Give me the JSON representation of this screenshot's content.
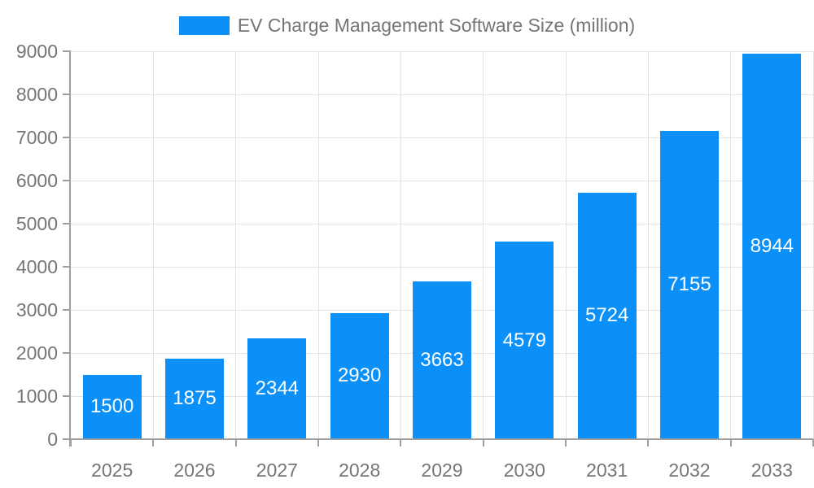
{
  "chart_data": {
    "type": "bar",
    "title": "EV Charge Management Software Size (million)",
    "legend_entries": [
      "EV Charge Management Software Size (million)"
    ],
    "legend_position": "top",
    "categories": [
      "2025",
      "2026",
      "2027",
      "2028",
      "2029",
      "2030",
      "2031",
      "2032",
      "2033"
    ],
    "values": [
      1500,
      1875,
      2344,
      2930,
      3663,
      4579,
      5724,
      7155,
      8944
    ],
    "xlabel": "",
    "ylabel": "",
    "ylim": [
      0,
      9000
    ],
    "ytick_step": 1000,
    "ytick_labels": [
      "0",
      "1000",
      "2000",
      "3000",
      "4000",
      "5000",
      "6000",
      "7000",
      "8000",
      "9000"
    ],
    "grid": true,
    "value_labels_shown": true,
    "colors": {
      "bar": "#0a90f8",
      "bar_value_label": "#ffffff",
      "axis_line": "#9e9e9e",
      "grid_line": "#e3e3e3",
      "tick_label": "#757575",
      "legend_text": "#757575",
      "background": "#ffffff"
    }
  }
}
